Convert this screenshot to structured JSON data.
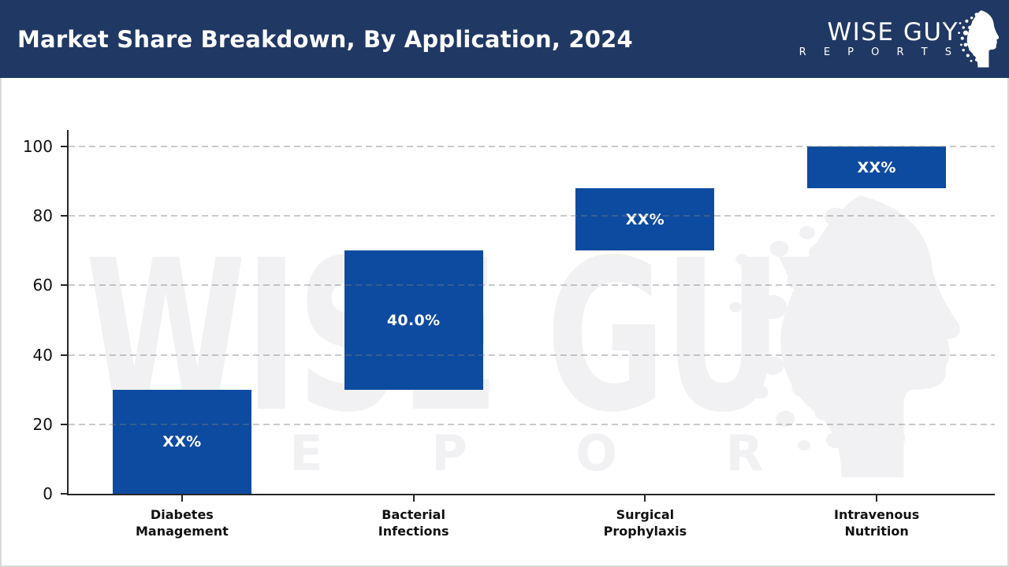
{
  "header": {
    "title": "Market Share Breakdown, By Application, 2024",
    "bg_color": "#203864",
    "logo": {
      "line1": "WISE GUY",
      "line2": "R E P O R T S"
    }
  },
  "watermark": {
    "line1": "WISE GUY",
    "line2": "R E P O R T S"
  },
  "chart_data": {
    "type": "bar",
    "subtype": "waterfall",
    "title": "Market Share Breakdown, By Application, 2024",
    "categories": [
      "Diabetes Management",
      "Bacterial Infections",
      "Surgical Prophylaxis",
      "Intravenous Nutrition"
    ],
    "segments": [
      {
        "category": "Diabetes Management",
        "label_lines": [
          "Diabetes",
          "Management"
        ],
        "start": 0,
        "end": 30,
        "value_label": "XX%"
      },
      {
        "category": "Bacterial Infections",
        "label_lines": [
          "Bacterial",
          "Infections"
        ],
        "start": 30,
        "end": 70,
        "value_label": "40.0%"
      },
      {
        "category": "Surgical Prophylaxis",
        "label_lines": [
          "Surgical",
          "Prophylaxis"
        ],
        "start": 70,
        "end": 88,
        "value_label": "XX%"
      },
      {
        "category": "Intravenous Nutrition",
        "label_lines": [
          "Intravenous",
          "Nutrition"
        ],
        "start": 88,
        "end": 100,
        "value_label": "XX%"
      }
    ],
    "y_ticks": [
      0,
      20,
      40,
      60,
      80,
      100
    ],
    "ylim": [
      0,
      104.8
    ],
    "grid": {
      "horizontal": true,
      "style": "dashed",
      "above_bars": true
    },
    "legend": "none",
    "bar_color": "#0d4ba0",
    "bar_label_color": "#ffffff",
    "axis_color": "#262626",
    "tick_label_color": "#111111"
  }
}
